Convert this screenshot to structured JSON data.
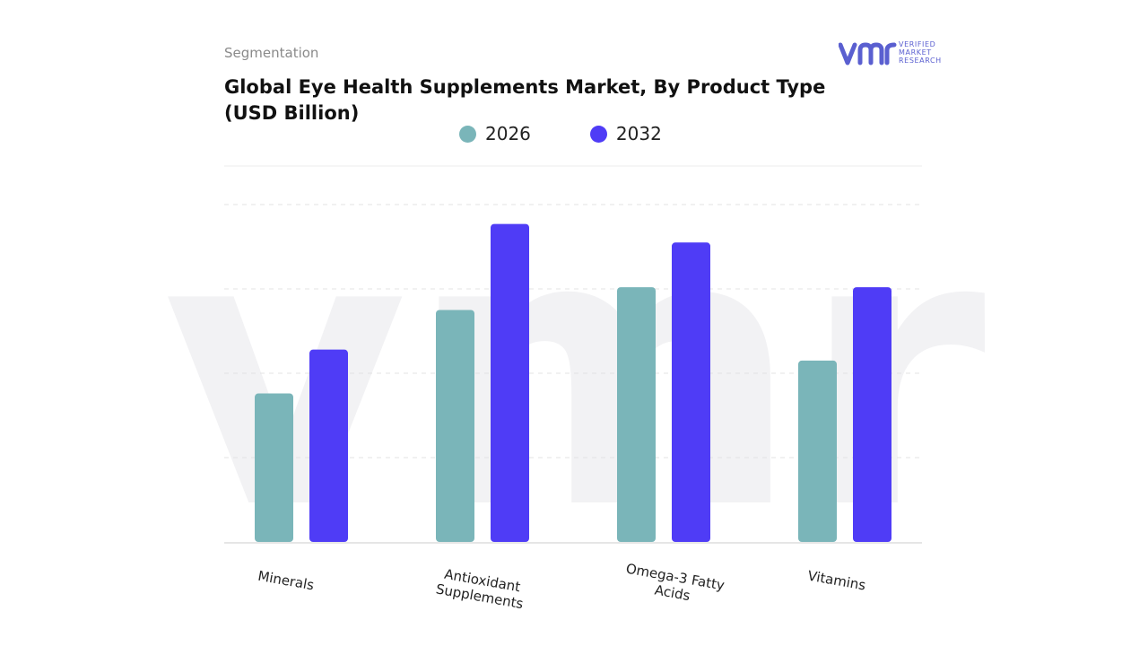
{
  "header": {
    "segment_label": "Segmentation",
    "title": "Global Eye Health Supplements Market, By Product Type (USD Billion)"
  },
  "logo": {
    "mark": "vmr",
    "lines": [
      "VERIFIED",
      "MARKET",
      "RESEARCH"
    ],
    "icon": "verified-market-research-logo",
    "watermark": "vmr"
  },
  "colors": {
    "series_2026": "#7ab5b9",
    "series_2032": "#4f3cf6",
    "grid": "#e3e3e3",
    "logo": "#5a5fd0"
  },
  "chart_data": {
    "type": "bar",
    "title": "Global Eye Health Supplements Market, By Product Type (USD Billion)",
    "xlabel": "",
    "ylabel": "",
    "categories": [
      "Minerals",
      "Antioxidant Supplements",
      "Omega-3 Fatty Acids",
      "Vitamins"
    ],
    "series": [
      {
        "name": "2026",
        "values": [
          1.76,
          2.75,
          3.02,
          2.15
        ]
      },
      {
        "name": "2032",
        "values": [
          2.28,
          3.77,
          3.55,
          3.02
        ]
      }
    ],
    "ylim": [
      0,
      4.0
    ],
    "grid": true,
    "y_tick_labels_shown": false,
    "legend_position": "top-center"
  }
}
